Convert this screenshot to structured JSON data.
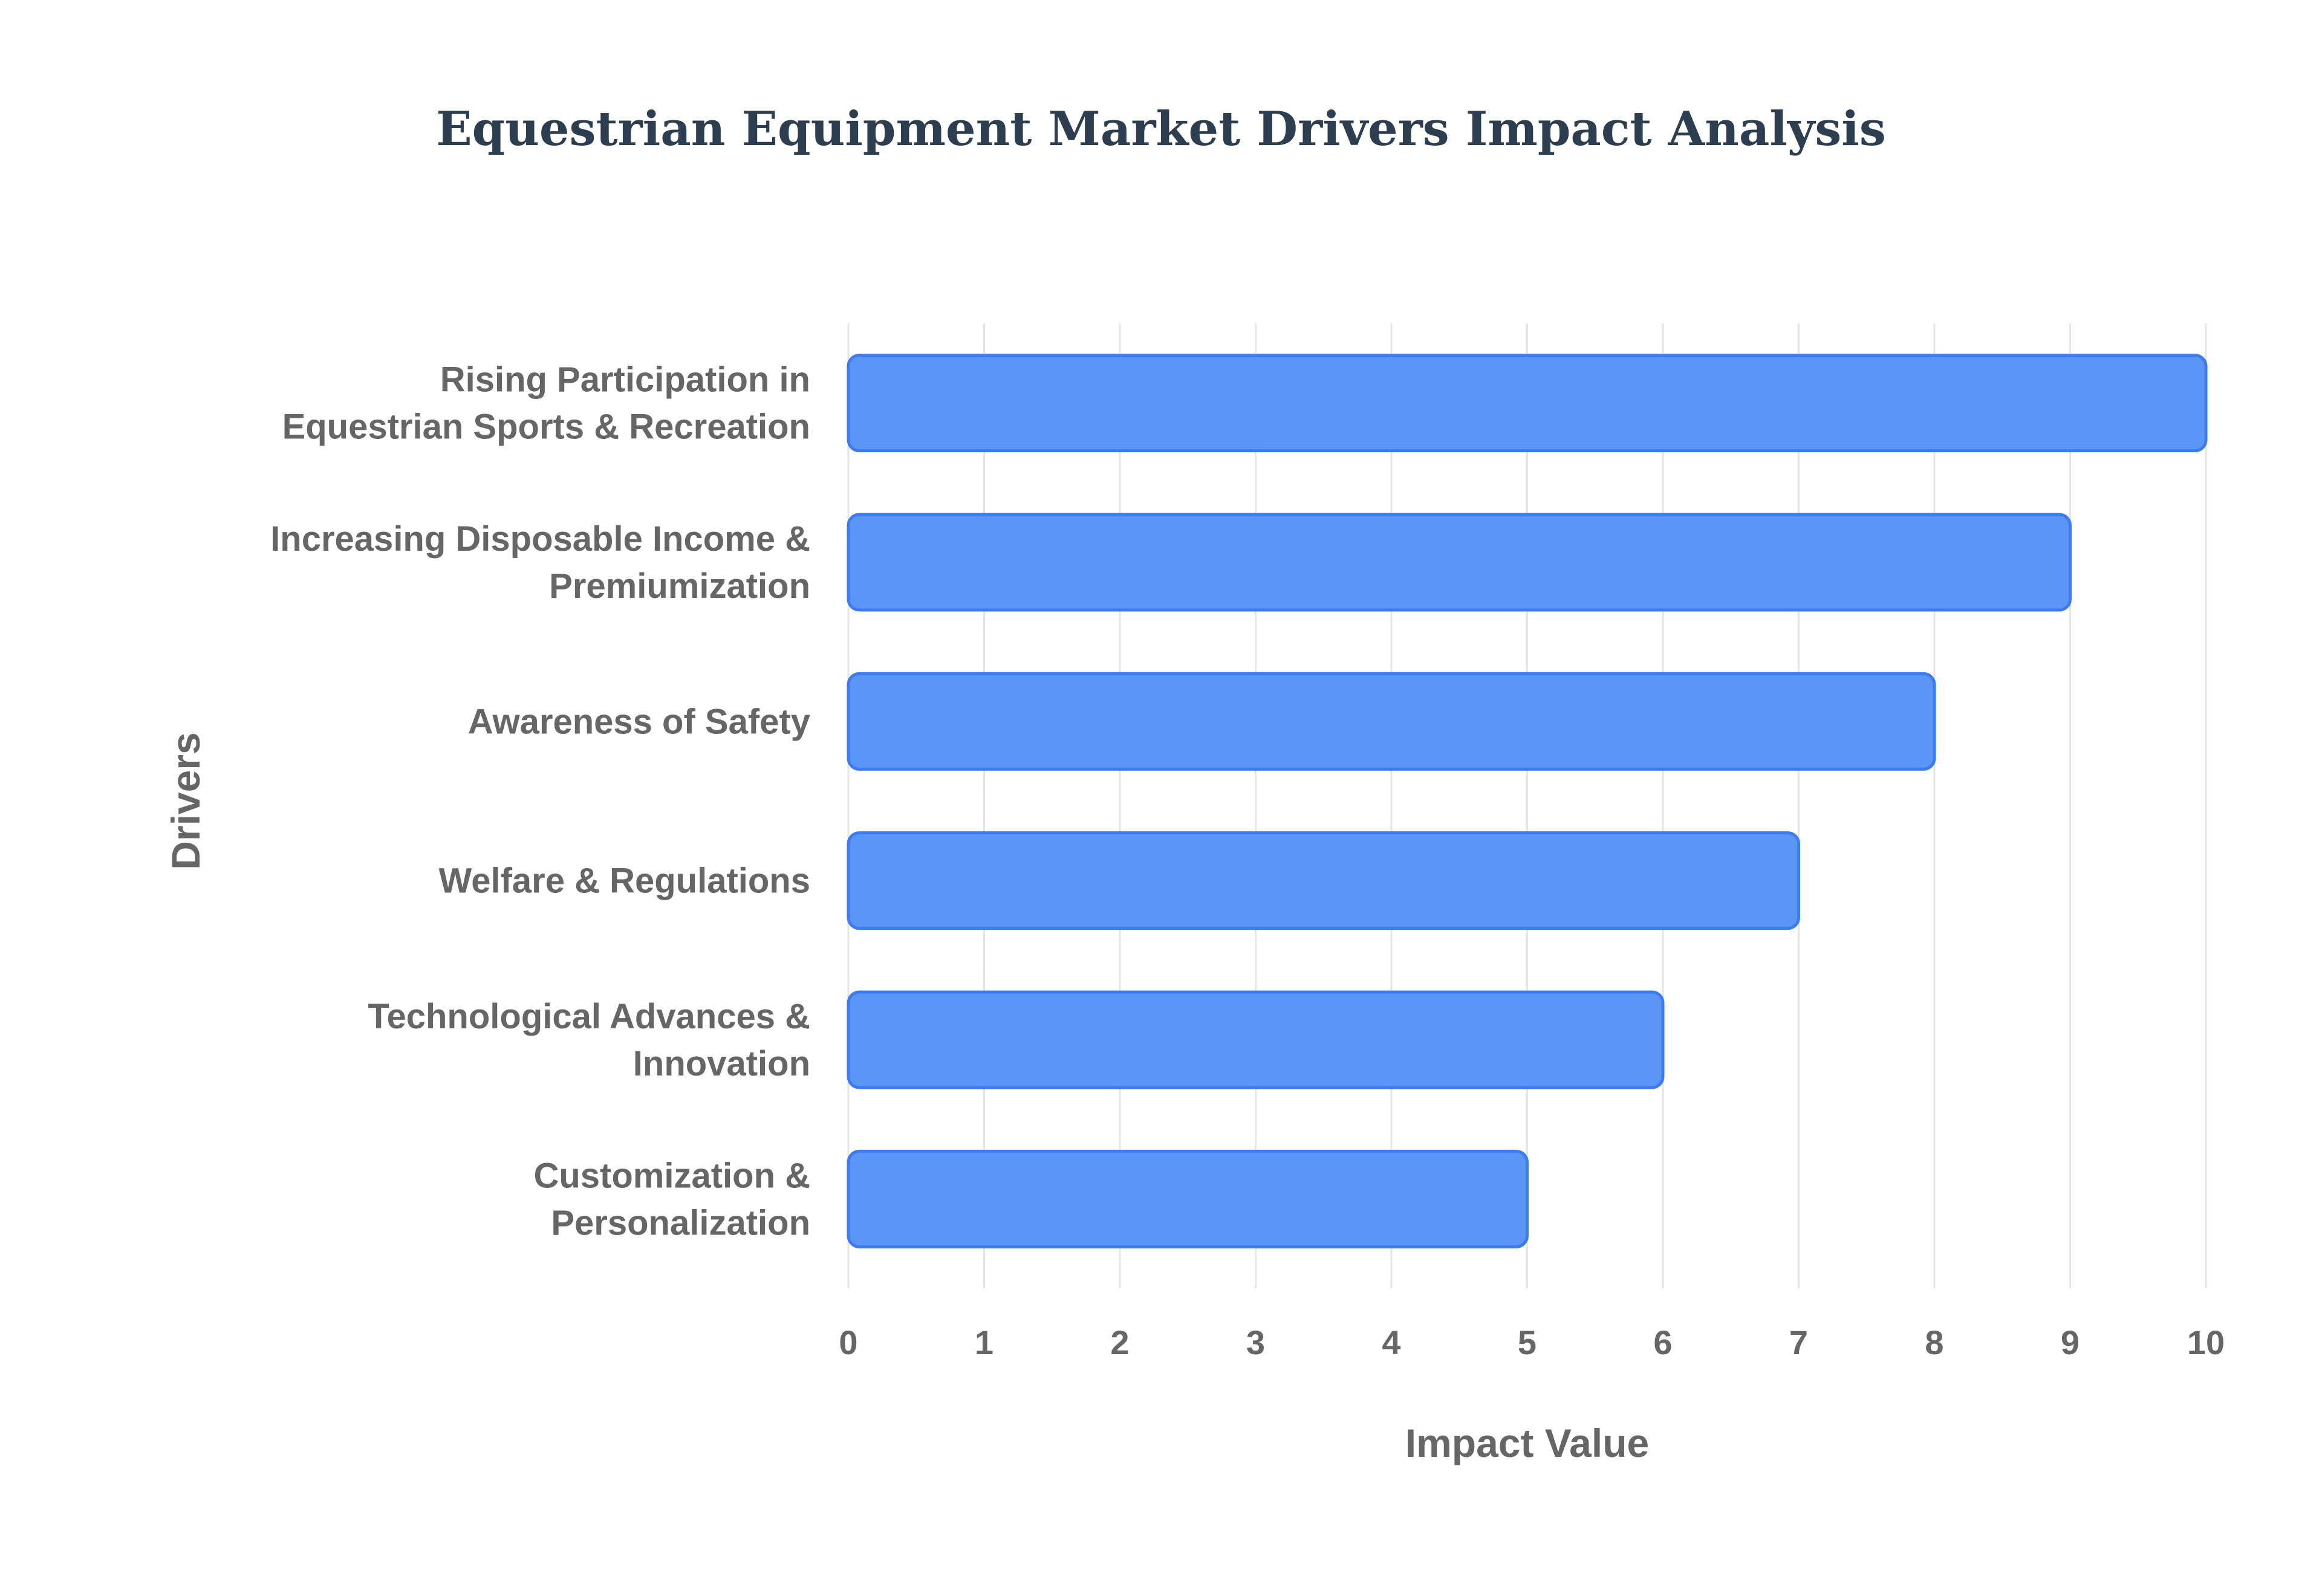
{
  "chart_data": {
    "type": "bar",
    "orientation": "horizontal",
    "title": "Equestrian Equipment Market Drivers Impact Analysis",
    "xlabel": "Impact Value",
    "ylabel": "Drivers",
    "categories": [
      [
        "Rising Participation in",
        "Equestrian Sports & Recreation"
      ],
      [
        "Increasing Disposable Income &",
        "Premiumization"
      ],
      [
        "Awareness of Safety"
      ],
      [
        "Welfare & Regulations"
      ],
      [
        "Technological Advances &",
        "Innovation"
      ],
      [
        "Customization &",
        "Personalization"
      ]
    ],
    "values": [
      10,
      9,
      8,
      7,
      6,
      5
    ],
    "xlim": [
      0,
      10
    ],
    "xticks": [
      "0",
      "1",
      "2",
      "3",
      "4",
      "5",
      "6",
      "7",
      "8",
      "9",
      "10"
    ],
    "grid": true,
    "colors": {
      "bar_fill": "#5b95f6",
      "bar_stroke": "#3d7cf0",
      "grid": "#e5e5e5",
      "text": "#666666",
      "title": "#2c3e50"
    }
  }
}
